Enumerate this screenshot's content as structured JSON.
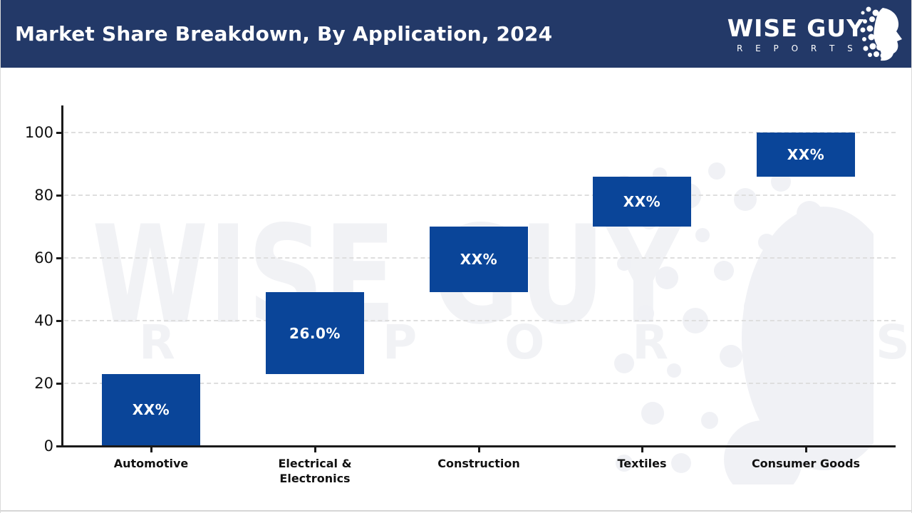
{
  "header": {
    "title": "Market Share Breakdown, By Application, 2024",
    "logo": {
      "name": "WISE GUY",
      "tagline": "R E P O R T S",
      "icon": "dotted-head-profile"
    }
  },
  "watermark": {
    "line1": "WISE GUY",
    "line2": "R E P O R T S",
    "icon": "dotted-head-profile"
  },
  "colors": {
    "header_bg": "#233968",
    "bar_fill": "#0a4599",
    "bar_label_text": "#ffffff",
    "grid_line": "#dedede",
    "axis_line": "#1a1a1a",
    "tick_label_text": "#111111",
    "watermark": "#f1f2f5"
  },
  "chart_data": {
    "type": "bar",
    "subtype": "waterfall",
    "title": "Market Share Breakdown, By Application, 2024",
    "xlabel": "",
    "ylabel": "",
    "ylim": [
      0,
      105
    ],
    "yticks": [
      0,
      20,
      40,
      60,
      80,
      100
    ],
    "grid": "horizontal-dashed",
    "legend": "none",
    "categories": [
      "Automotive",
      "Electrical & Electronics",
      "Construction",
      "Textiles",
      "Consumer Goods"
    ],
    "segments": [
      {
        "category": "Automotive",
        "start": 0,
        "end": 23,
        "bar_label": "XX%"
      },
      {
        "category": "Electrical & Electronics",
        "start": 23,
        "end": 49,
        "bar_label": "26.0%",
        "value": 26.0
      },
      {
        "category": "Construction",
        "start": 49,
        "end": 70,
        "bar_label": "XX%"
      },
      {
        "category": "Textiles",
        "start": 70,
        "end": 86,
        "bar_label": "XX%"
      },
      {
        "category": "Consumer Goods",
        "start": 86,
        "end": 100,
        "bar_label": "XX%"
      }
    ]
  }
}
